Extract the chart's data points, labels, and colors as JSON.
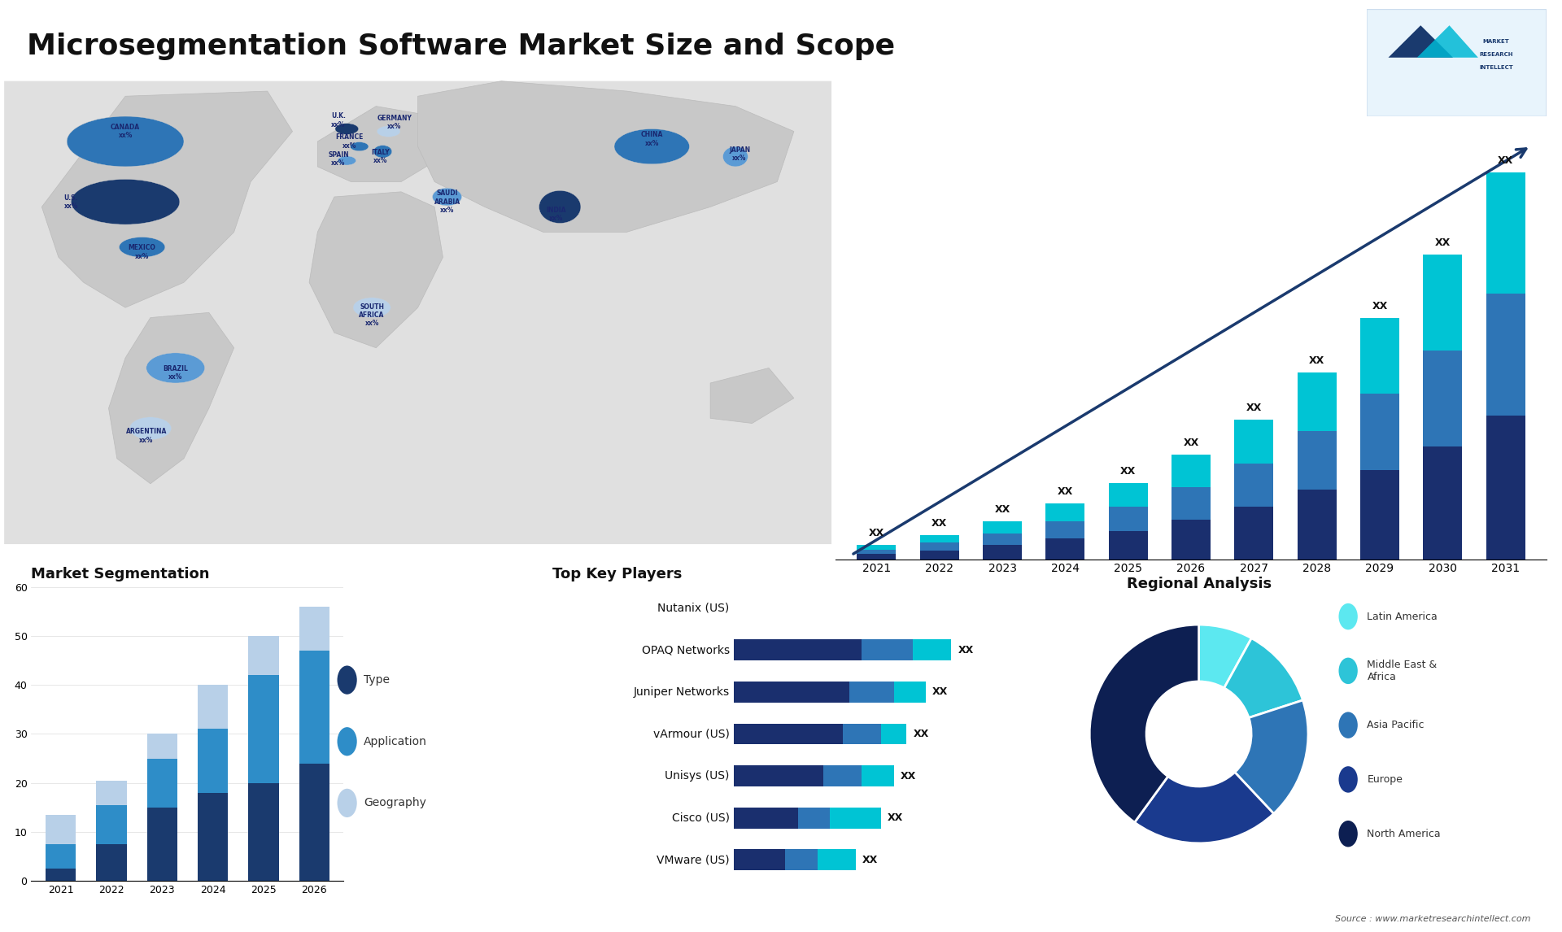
{
  "title": "Microsegmentation Software Market Size and Scope",
  "title_fontsize": 26,
  "background_color": "#ffffff",
  "bar_chart_years": [
    2021,
    2022,
    2023,
    2024,
    2025,
    2026,
    2027,
    2028,
    2029,
    2030,
    2031
  ],
  "bar_s1": [
    1.2,
    2.0,
    3.2,
    4.8,
    6.5,
    9.0,
    12.0,
    16.0,
    20.5,
    26.0,
    33.0
  ],
  "bar_s2": [
    1.0,
    1.8,
    2.8,
    4.0,
    5.5,
    7.5,
    10.0,
    13.5,
    17.5,
    22.0,
    28.0
  ],
  "bar_s3": [
    1.0,
    1.8,
    2.8,
    4.0,
    5.5,
    7.5,
    10.0,
    13.5,
    17.5,
    22.0,
    28.0
  ],
  "bar_color1": "#1a2f6e",
  "bar_color2": "#2E75B6",
  "bar_color3": "#00C4D4",
  "seg_years": [
    2021,
    2022,
    2023,
    2024,
    2025,
    2026
  ],
  "seg_type": [
    2.5,
    7.5,
    15,
    18,
    20,
    24
  ],
  "seg_app": [
    5,
    8,
    10,
    13,
    22,
    23
  ],
  "seg_geo": [
    6,
    5,
    5,
    9,
    8,
    9
  ],
  "seg_color_type": "#1a3a6e",
  "seg_color_app": "#2E8DC8",
  "seg_color_geo": "#b8d0e8",
  "seg_ylim": [
    0,
    60
  ],
  "players": [
    "Nutanix (US)",
    "OPAQ Networks",
    "Juniper Networks",
    "vArmour (US)",
    "Unisys (US)",
    "Cisco (US)",
    "VMware (US)"
  ],
  "player_s1": [
    0,
    10,
    9,
    8.5,
    7,
    5,
    4
  ],
  "player_s2": [
    0,
    4,
    3.5,
    3,
    3,
    2.5,
    2.5
  ],
  "player_s3": [
    0,
    3,
    2.5,
    2,
    2.5,
    4,
    3
  ],
  "player_color1": "#1a2f6e",
  "player_color2": "#2E75B6",
  "player_color3": "#00C4D4",
  "pie_values": [
    8,
    12,
    18,
    22,
    40
  ],
  "pie_colors": [
    "#5CE8F0",
    "#2DC4D8",
    "#2E75B6",
    "#1a3a8e",
    "#0d1f52"
  ],
  "pie_labels": [
    "Latin America",
    "Middle East &\nAfrica",
    "Asia Pacific",
    "Europe",
    "North America"
  ],
  "source_text": "Source : www.marketresearchintellect.com"
}
